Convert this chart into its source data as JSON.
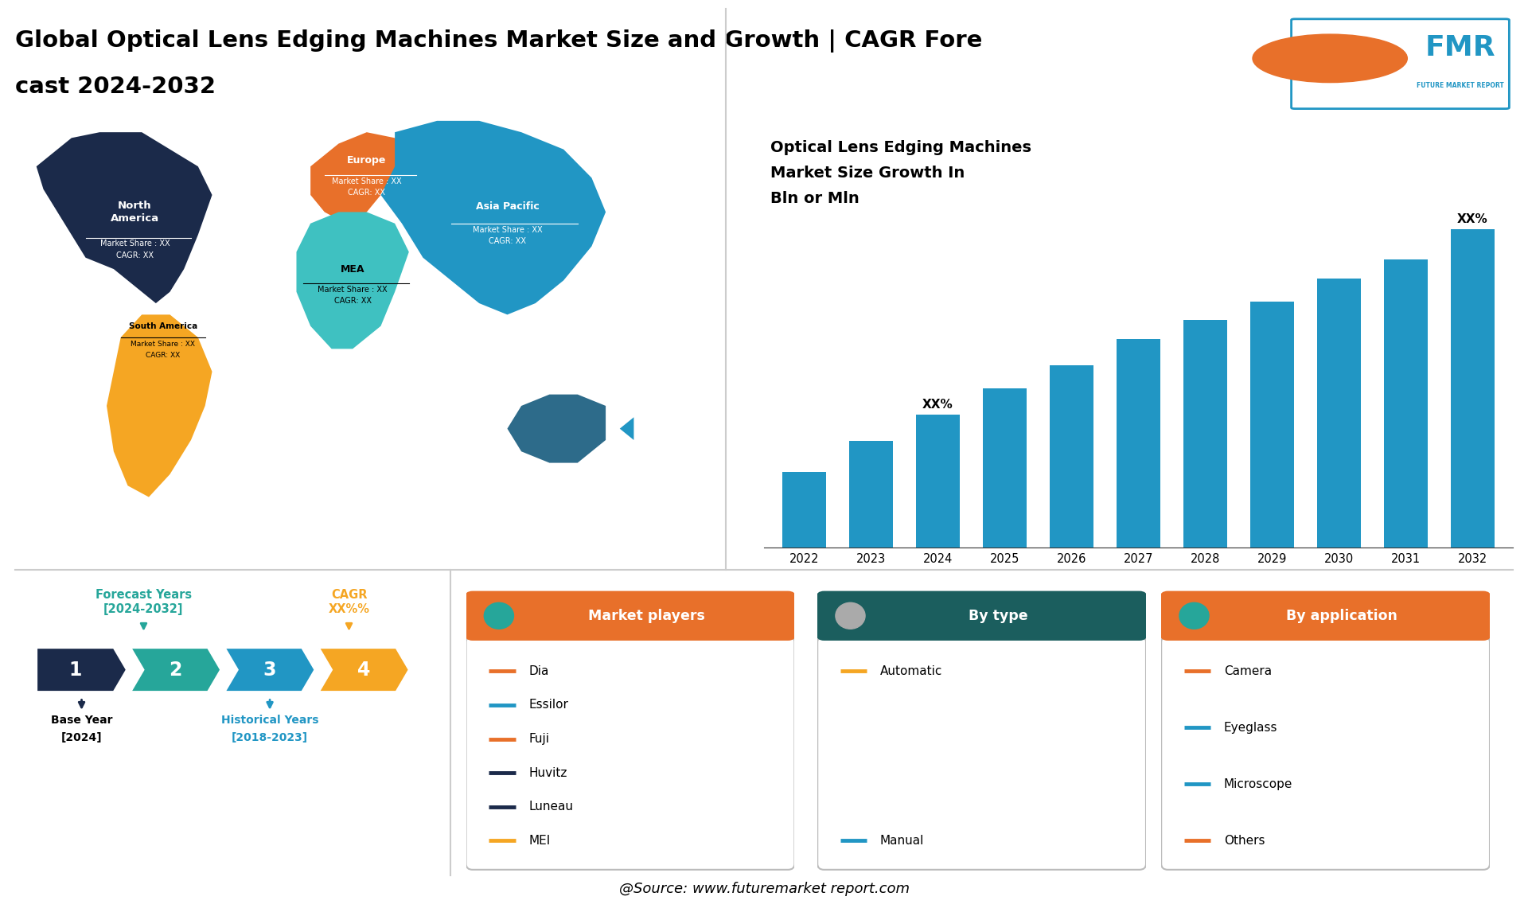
{
  "title_line1": "Global Optical Lens Edging Machines Market Size and Growth | CAGR Fore",
  "title_line2": "cast 2024-2032",
  "chart_title_line1": "Optical Lens Edging Machines",
  "chart_title_line2": "Market Size Growth In",
  "chart_title_line3": "Bln or Mln",
  "bar_years": [
    "2022",
    "2023",
    "2024",
    "2025",
    "2026",
    "2027",
    "2028",
    "2029",
    "2030",
    "2031",
    "2032"
  ],
  "bar_heights": [
    2.0,
    2.8,
    3.5,
    4.2,
    4.8,
    5.5,
    6.0,
    6.5,
    7.1,
    7.6,
    8.4
  ],
  "bar_color_main": "#2196C4",
  "bar_annotation_2024": "XX%",
  "bar_annotation_2032": "XX%",
  "na_color": "#1B2A4A",
  "sa_color": "#F5A623",
  "eu_color": "#E8702A",
  "mea_color": "#3FC1C1",
  "ap_color": "#2196C4",
  "aus_color": "#2d6b8a",
  "categories": [
    {
      "title": "Market players",
      "title_color": "#FFFFFF",
      "bg_color": "#E8702A",
      "dot_color": "#26A69A",
      "items": [
        "Dia",
        "Essilor",
        "Fuji",
        "Huvitz",
        "Luneau",
        "MEI"
      ],
      "item_colors": [
        "#E8702A",
        "#2196C4",
        "#E8702A",
        "#1B2A4A",
        "#1B2A4A",
        "#F5A623"
      ]
    },
    {
      "title": "By type",
      "title_color": "#FFFFFF",
      "bg_color": "#1B5E5E",
      "dot_color": "#AAAAAA",
      "items": [
        "Automatic",
        "Manual"
      ],
      "item_colors": [
        "#F5A623",
        "#2196C4"
      ]
    },
    {
      "title": "By application",
      "title_color": "#FFFFFF",
      "bg_color": "#E8702A",
      "dot_color": "#26A69A",
      "items": [
        "Camera",
        "Eyeglass",
        "Microscope",
        "Others"
      ],
      "item_colors": [
        "#E8702A",
        "#2196C4",
        "#2196C4",
        "#E8702A"
      ]
    }
  ],
  "source_text": "@Source: www.futuremarket report.com",
  "bg_color": "#FFFFFF",
  "fmr_color": "#2196C4",
  "fmr_orange": "#E8702A"
}
